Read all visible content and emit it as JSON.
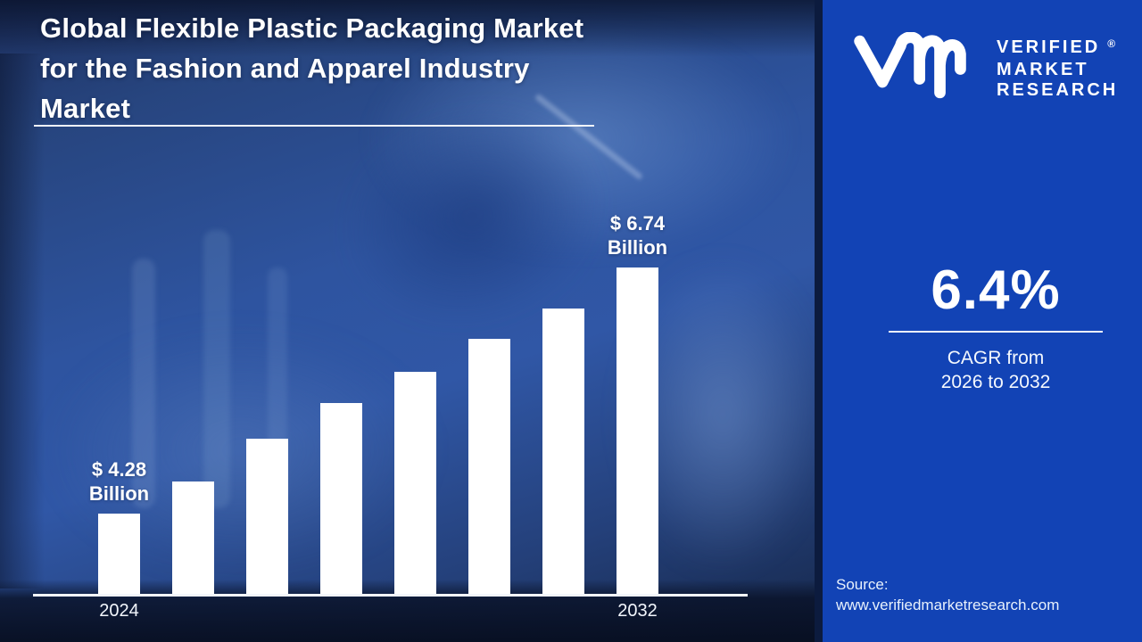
{
  "colors": {
    "right_panel_blue": "#1243B5",
    "divider_navy": "#0C1B3E",
    "left_backdrop_blue": "#2E54A0",
    "bar_white": "#FFFFFF",
    "text_white": "#FFFFFF"
  },
  "header": {
    "title_lines": [
      "Global Flexible Plastic Packaging Market",
      "for the Fashion and Apparel Industry",
      "Market"
    ]
  },
  "brand": {
    "logo": "vmr-monogram",
    "name_lines": [
      "VERIFIED",
      "MARKET",
      "RESEARCH"
    ],
    "registered_mark": "®"
  },
  "cagr": {
    "value": "6.4%",
    "caption_line1": "CAGR from",
    "caption_line2": "2026 to 2032"
  },
  "source": {
    "label": "Source:",
    "url": "www.verifiedmarketresearch.com"
  },
  "chart_data": {
    "type": "bar",
    "title": "Global Flexible Plastic Packaging Market for the Fashion and Apparel Industry Market",
    "unit": "USD Billion",
    "values": [
      4.28,
      4.6,
      5.03,
      5.39,
      5.7,
      6.03,
      6.33,
      6.74
    ],
    "labeled_values": {
      "first": 4.28,
      "last": 6.74
    },
    "value_label_first": {
      "amount": "$ 4.28",
      "unit": "Billion"
    },
    "value_label_last": {
      "amount": "$ 6.74",
      "unit": "Billion"
    },
    "x_first_label": "2024",
    "x_last_label": "2032",
    "bar_color": "#FFFFFF",
    "axis_color": "#F2F6FC",
    "grid": false,
    "legend": "none",
    "ylim_implied": [
      3.47,
      7.0
    ]
  }
}
